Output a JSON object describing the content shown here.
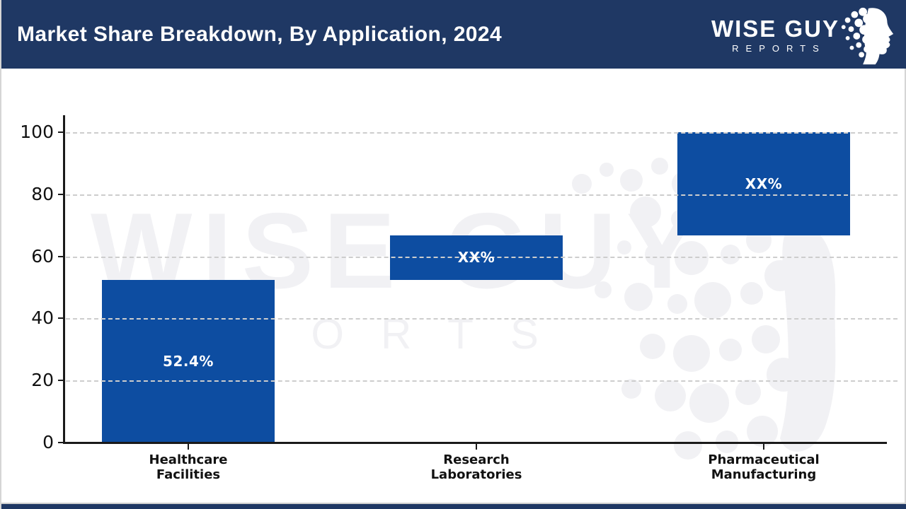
{
  "header": {
    "title": "Market Share Breakdown, By Application, 2024",
    "bg_color": "#1f3864",
    "logo": {
      "line1": "WISE GUY",
      "line2": "REPORTS"
    }
  },
  "watermark": {
    "line1": "WISE GUY",
    "line2": "REPORTS"
  },
  "chart_data": {
    "type": "bar",
    "variant": "floating-waterfall",
    "title": "Market Share Breakdown, By Application, 2024",
    "categories": [
      {
        "line1": "Healthcare",
        "line2": "Facilities"
      },
      {
        "line1": "Research",
        "line2": "Laboratories"
      },
      {
        "line1": "Pharmaceutical",
        "line2": "Manufacturing"
      }
    ],
    "segments": [
      {
        "category": "Healthcare Facilities",
        "start": 0,
        "end": 52.4,
        "label": "52.4%"
      },
      {
        "category": "Research Laboratories",
        "start": 52.4,
        "end": 66.8,
        "label": "XX%"
      },
      {
        "category": "Pharmaceutical Manufacturing",
        "start": 66.8,
        "end": 100,
        "label": "XX%"
      }
    ],
    "ylim": [
      0,
      100
    ],
    "yticks": [
      0,
      20,
      40,
      60,
      80,
      100
    ],
    "grid": "dashed-horizontal",
    "legend": "none",
    "bar_color": "#0d4da1",
    "bar_label_color": "#ffffff",
    "axis_color": "#1a1a1a",
    "gridline_color": "#cdcdcd"
  }
}
